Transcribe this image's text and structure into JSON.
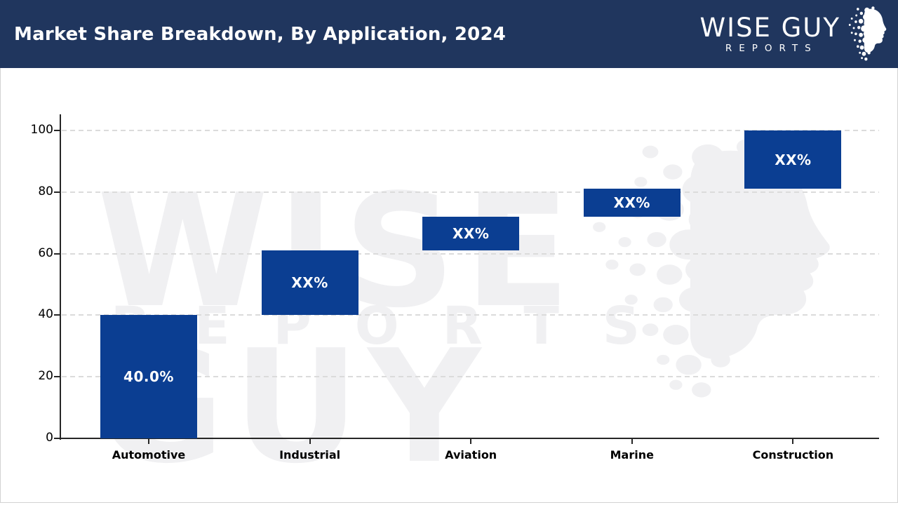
{
  "header": {
    "title": "Market Share Breakdown, By Application, 2024",
    "logo": {
      "line1": "WISE GUY",
      "line2": "REPORTS"
    }
  },
  "watermark": {
    "line1": "WISE GUY",
    "line2": "REPORTS"
  },
  "chart_data": {
    "type": "bar",
    "subtype": "waterfall",
    "title": "Market Share Breakdown, By Application, 2024",
    "categories": [
      "Automotive",
      "Industrial",
      "Aviation",
      "Marine",
      "Construction"
    ],
    "segments": [
      {
        "category": "Automotive",
        "start": 0,
        "end": 40,
        "value": 40,
        "label": "40.0%"
      },
      {
        "category": "Industrial",
        "start": 40,
        "end": 61,
        "value": 21,
        "label": "XX%"
      },
      {
        "category": "Aviation",
        "start": 61,
        "end": 72,
        "value": 11,
        "label": "XX%"
      },
      {
        "category": "Marine",
        "start": 72,
        "end": 81,
        "value": 9,
        "label": "XX%"
      },
      {
        "category": "Construction",
        "start": 81,
        "end": 100,
        "value": 19,
        "label": "XX%"
      }
    ],
    "ylim": [
      0,
      100
    ],
    "yticks": [
      0,
      20,
      40,
      60,
      80,
      100
    ],
    "xlabel": "",
    "ylabel": "",
    "grid": "horizontal-dashed",
    "legend": "none",
    "colors": {
      "bar": "#0b3e92",
      "bar_label": "#ffffff",
      "axis": "#262626",
      "gridline": "#dbdbdb",
      "header_bg": "#20365e",
      "header_text": "#ffffff",
      "watermark": "#f0f0f2"
    }
  }
}
